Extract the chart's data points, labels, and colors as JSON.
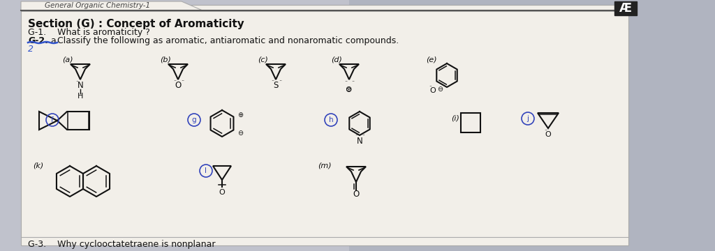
{
  "bg_color": "#b8bcc8",
  "paper_color": "#f0ede8",
  "title_bold": "Section (G) : Concept of Aromaticity",
  "line1": "G-1.    What is aromaticity ?",
  "g2_prefix": "G-2.",
  "g2_alpha": "a",
  "g2_text": "Classify the following as aromatic, antiaromatic and nonaromatic compounds.",
  "header_text": "General Organic Chemistry-1",
  "footer_text": "G-3.    Why cyclooctatetraene is nonplanar",
  "icon_char": "Æ",
  "label_color": "#222222",
  "circle_label_color": "#3344bb",
  "struct_color": "#111111"
}
